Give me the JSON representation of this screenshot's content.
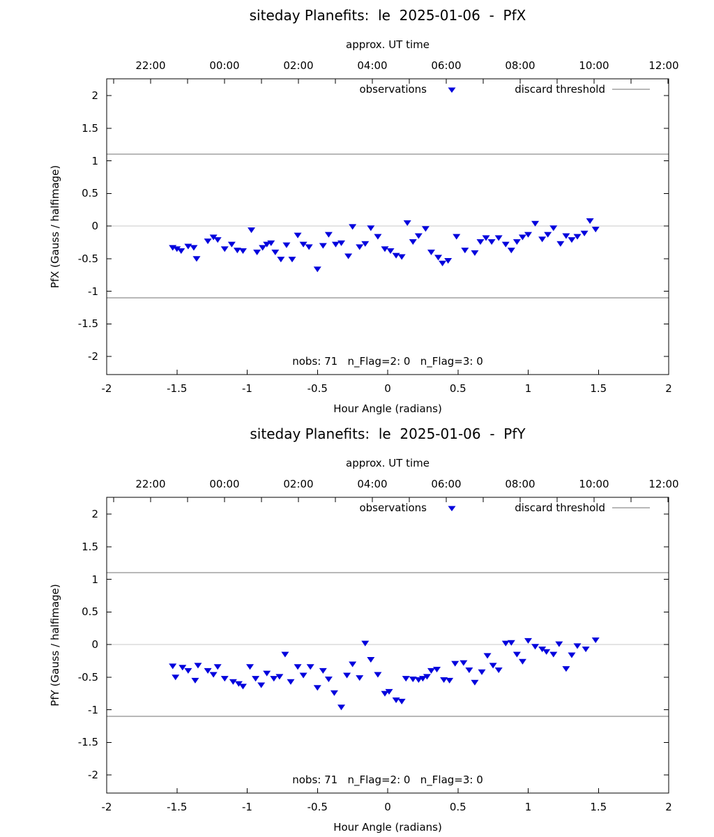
{
  "colors": {
    "background": "#ffffff",
    "marker_blue": "#0000dd",
    "threshold_gray": "#b8b8b8",
    "zero_line_gray": "#c8c8c8",
    "axis_black": "#000000",
    "text_black": "#000000"
  },
  "chart_data": [
    {
      "type": "scatter",
      "title": "siteday Planefits:  le  2025-01-06  -  PfX",
      "top_axis": {
        "label": "approx. UT time",
        "tick_labels": [
          "22:00",
          "00:00",
          "02:00",
          "04:00",
          "06:00",
          "08:00",
          "10:00",
          "12:00"
        ]
      },
      "xlabel": "Hour Angle (radians)",
      "ylabel": "PfX (Gauss / halfimage)",
      "xlim": [
        -2,
        2
      ],
      "ylim": [
        -2.26,
        2.26
      ],
      "x_ticks": [
        -2,
        -1.5,
        -1,
        -0.5,
        0,
        0.5,
        1,
        1.5,
        2
      ],
      "y_ticks": [
        2,
        1.5,
        1,
        0.5,
        0,
        -0.5,
        -1,
        -1.5,
        -2
      ],
      "grid": "horizontal zero line only",
      "legend_position": "inside top right",
      "legend": [
        {
          "label": "observations",
          "marker": "triangle-down"
        },
        {
          "label": "discard threshold",
          "marker": "line"
        }
      ],
      "discard_threshold": [
        1.1,
        -1.1
      ],
      "stats_text": "nobs: 71   n_Flag=2: 0   n_Flag=3: 0",
      "nobs": 71,
      "series": [
        {
          "name": "observations",
          "points": [
            [
              -1.53,
              -0.33
            ],
            [
              -1.5,
              -0.35
            ],
            [
              -1.47,
              -0.38
            ],
            [
              -1.42,
              -0.31
            ],
            [
              -1.38,
              -0.33
            ],
            [
              -1.36,
              -0.5
            ],
            [
              -1.28,
              -0.23
            ],
            [
              -1.24,
              -0.17
            ],
            [
              -1.21,
              -0.21
            ],
            [
              -1.16,
              -0.35
            ],
            [
              -1.11,
              -0.28
            ],
            [
              -1.07,
              -0.37
            ],
            [
              -1.03,
              -0.38
            ],
            [
              -0.97,
              -0.06
            ],
            [
              -0.93,
              -0.4
            ],
            [
              -0.89,
              -0.33
            ],
            [
              -0.86,
              -0.28
            ],
            [
              -0.83,
              -0.26
            ],
            [
              -0.8,
              -0.4
            ],
            [
              -0.76,
              -0.51
            ],
            [
              -0.72,
              -0.29
            ],
            [
              -0.68,
              -0.51
            ],
            [
              -0.64,
              -0.14
            ],
            [
              -0.6,
              -0.28
            ],
            [
              -0.56,
              -0.32
            ],
            [
              -0.5,
              -0.66
            ],
            [
              -0.46,
              -0.3
            ],
            [
              -0.42,
              -0.13
            ],
            [
              -0.37,
              -0.28
            ],
            [
              -0.33,
              -0.26
            ],
            [
              -0.28,
              -0.46
            ],
            [
              -0.25,
              -0.01
            ],
            [
              -0.2,
              -0.32
            ],
            [
              -0.16,
              -0.27
            ],
            [
              -0.12,
              -0.03
            ],
            [
              -0.07,
              -0.16
            ],
            [
              -0.02,
              -0.35
            ],
            [
              0.02,
              -0.38
            ],
            [
              0.06,
              -0.45
            ],
            [
              0.1,
              -0.47
            ],
            [
              0.14,
              0.05
            ],
            [
              0.18,
              -0.24
            ],
            [
              0.22,
              -0.15
            ],
            [
              0.27,
              -0.04
            ],
            [
              0.31,
              -0.4
            ],
            [
              0.36,
              -0.48
            ],
            [
              0.39,
              -0.57
            ],
            [
              0.43,
              -0.53
            ],
            [
              0.49,
              -0.16
            ],
            [
              0.55,
              -0.37
            ],
            [
              0.62,
              -0.41
            ],
            [
              0.66,
              -0.24
            ],
            [
              0.7,
              -0.18
            ],
            [
              0.74,
              -0.24
            ],
            [
              0.79,
              -0.18
            ],
            [
              0.84,
              -0.28
            ],
            [
              0.88,
              -0.37
            ],
            [
              0.92,
              -0.24
            ],
            [
              0.96,
              -0.17
            ],
            [
              1.0,
              -0.13
            ],
            [
              1.05,
              0.04
            ],
            [
              1.1,
              -0.2
            ],
            [
              1.14,
              -0.13
            ],
            [
              1.18,
              -0.03
            ],
            [
              1.23,
              -0.27
            ],
            [
              1.27,
              -0.15
            ],
            [
              1.31,
              -0.21
            ],
            [
              1.35,
              -0.16
            ],
            [
              1.4,
              -0.11
            ],
            [
              1.44,
              0.08
            ],
            [
              1.48,
              -0.05
            ]
          ]
        }
      ]
    },
    {
      "type": "scatter",
      "title": "siteday Planefits:  le  2025-01-06  -  PfY",
      "top_axis": {
        "label": "approx. UT time",
        "tick_labels": [
          "22:00",
          "00:00",
          "02:00",
          "04:00",
          "06:00",
          "08:00",
          "10:00",
          "12:00"
        ]
      },
      "xlabel": "Hour Angle (radians)",
      "ylabel": "PfY (Gauss / halfimage)",
      "xlim": [
        -2,
        2
      ],
      "ylim": [
        -2.26,
        2.26
      ],
      "x_ticks": [
        -2,
        -1.5,
        -1,
        -0.5,
        0,
        0.5,
        1,
        1.5,
        2
      ],
      "y_ticks": [
        2,
        1.5,
        1,
        0.5,
        0,
        -0.5,
        -1,
        -1.5,
        -2
      ],
      "grid": "horizontal zero line only",
      "legend_position": "inside top right",
      "legend": [
        {
          "label": "observations",
          "marker": "triangle-down"
        },
        {
          "label": "discard threshold",
          "marker": "line"
        }
      ],
      "discard_threshold": [
        1.1,
        -1.1
      ],
      "stats_text": "nobs: 71   n_Flag=2: 0   n_Flag=3: 0",
      "nobs": 71,
      "series": [
        {
          "name": "observations",
          "points": [
            [
              -1.53,
              -0.33
            ],
            [
              -1.51,
              -0.5
            ],
            [
              -1.46,
              -0.35
            ],
            [
              -1.42,
              -0.4
            ],
            [
              -1.37,
              -0.55
            ],
            [
              -1.35,
              -0.32
            ],
            [
              -1.28,
              -0.4
            ],
            [
              -1.24,
              -0.46
            ],
            [
              -1.21,
              -0.34
            ],
            [
              -1.16,
              -0.52
            ],
            [
              -1.1,
              -0.57
            ],
            [
              -1.06,
              -0.6
            ],
            [
              -1.03,
              -0.64
            ],
            [
              -0.98,
              -0.34
            ],
            [
              -0.94,
              -0.52
            ],
            [
              -0.9,
              -0.62
            ],
            [
              -0.86,
              -0.44
            ],
            [
              -0.81,
              -0.52
            ],
            [
              -0.77,
              -0.49
            ],
            [
              -0.73,
              -0.15
            ],
            [
              -0.69,
              -0.57
            ],
            [
              -0.64,
              -0.34
            ],
            [
              -0.6,
              -0.47
            ],
            [
              -0.55,
              -0.34
            ],
            [
              -0.5,
              -0.66
            ],
            [
              -0.46,
              -0.4
            ],
            [
              -0.42,
              -0.53
            ],
            [
              -0.38,
              -0.74
            ],
            [
              -0.33,
              -0.96
            ],
            [
              -0.29,
              -0.47
            ],
            [
              -0.25,
              -0.3
            ],
            [
              -0.2,
              -0.51
            ],
            [
              -0.16,
              0.02
            ],
            [
              -0.12,
              -0.23
            ],
            [
              -0.07,
              -0.46
            ],
            [
              -0.02,
              -0.75
            ],
            [
              0.01,
              -0.72
            ],
            [
              0.06,
              -0.85
            ],
            [
              0.1,
              -0.87
            ],
            [
              0.13,
              -0.52
            ],
            [
              0.18,
              -0.53
            ],
            [
              0.22,
              -0.54
            ],
            [
              0.25,
              -0.52
            ],
            [
              0.28,
              -0.49
            ],
            [
              0.31,
              -0.4
            ],
            [
              0.35,
              -0.38
            ],
            [
              0.4,
              -0.54
            ],
            [
              0.44,
              -0.55
            ],
            [
              0.48,
              -0.29
            ],
            [
              0.54,
              -0.28
            ],
            [
              0.58,
              -0.39
            ],
            [
              0.62,
              -0.58
            ],
            [
              0.67,
              -0.42
            ],
            [
              0.71,
              -0.17
            ],
            [
              0.75,
              -0.32
            ],
            [
              0.79,
              -0.39
            ],
            [
              0.84,
              0.02
            ],
            [
              0.88,
              0.03
            ],
            [
              0.92,
              -0.15
            ],
            [
              0.96,
              -0.26
            ],
            [
              1.0,
              0.06
            ],
            [
              1.05,
              -0.03
            ],
            [
              1.1,
              -0.07
            ],
            [
              1.13,
              -0.11
            ],
            [
              1.18,
              -0.15
            ],
            [
              1.22,
              0.01
            ],
            [
              1.27,
              -0.37
            ],
            [
              1.31,
              -0.16
            ],
            [
              1.35,
              -0.02
            ],
            [
              1.41,
              -0.07
            ],
            [
              1.48,
              0.07
            ]
          ]
        }
      ]
    }
  ]
}
